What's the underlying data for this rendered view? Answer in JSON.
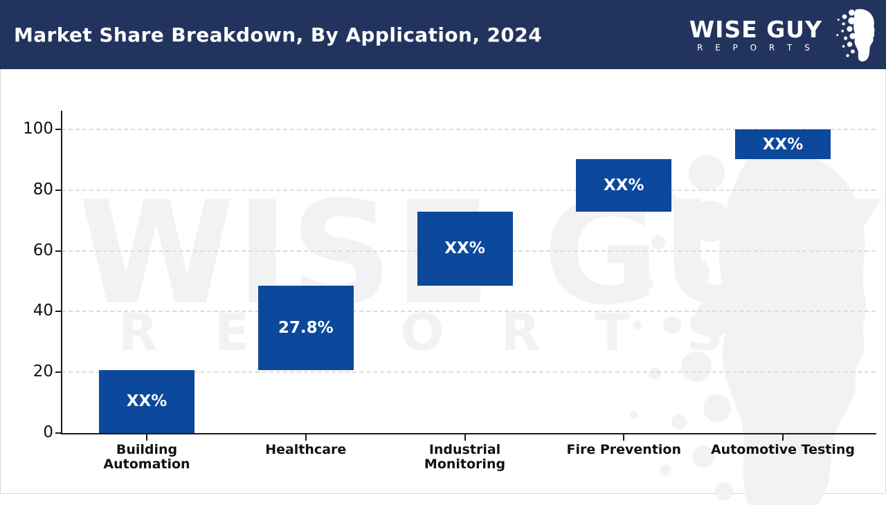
{
  "header": {
    "title": "Market Share Breakdown, By Application, 2024",
    "brand": {
      "line1": "WISE GUY",
      "line2": "R E P O R T S"
    }
  },
  "watermark": {
    "line1": "WISE GUY",
    "line2": "REPORTS"
  },
  "chart_data": {
    "type": "bar",
    "subtype": "waterfall-floating-bars",
    "title": "Market Share Breakdown, By Application, 2024",
    "xlabel": "",
    "ylabel": "",
    "ylim": [
      0,
      100
    ],
    "yticks": [
      0,
      20,
      40,
      60,
      80,
      100
    ],
    "grid": "horizontal-dashed",
    "legend": "none",
    "categories": [
      "Building\nAutomation",
      "Healthcare",
      "Industrial\nMonitoring",
      "Fire Prevention",
      "Automotive Testing"
    ],
    "series": [
      {
        "name": "Market Share",
        "segments": [
          {
            "category": "Building Automation",
            "start": 0,
            "end": 20.8,
            "value": 20.8,
            "label": "XX%"
          },
          {
            "category": "Healthcare",
            "start": 20.8,
            "end": 48.6,
            "value": 27.8,
            "label": "27.8%"
          },
          {
            "category": "Industrial Monitoring",
            "start": 48.6,
            "end": 72.9,
            "value": 24.3,
            "label": "XX%"
          },
          {
            "category": "Fire Prevention",
            "start": 72.9,
            "end": 90.2,
            "value": 17.3,
            "label": "XX%"
          },
          {
            "category": "Automotive Testing",
            "start": 90.2,
            "end": 100,
            "value": 9.8,
            "label": "XX%"
          }
        ]
      }
    ],
    "colors": {
      "bar": "#0c489c",
      "bar_label": "#ffffff",
      "header_bg": "#22345e",
      "grid": "#dcdcdc",
      "axis": "#1a1a1a",
      "watermark": "#f2f2f4"
    }
  }
}
